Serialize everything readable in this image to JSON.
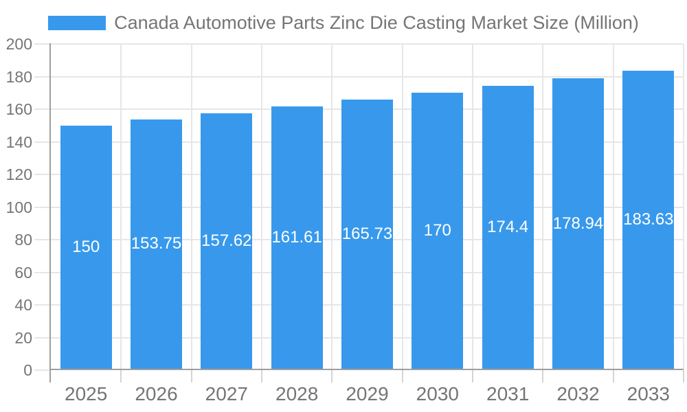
{
  "legend": {
    "swatch_color": "#3899EC",
    "label": "Canada Automotive Parts Zinc Die Casting Market Size (Million)"
  },
  "chart_data": {
    "type": "bar",
    "title": "Canada Automotive Parts Zinc Die Casting Market Size (Million)",
    "categories": [
      "2025",
      "2026",
      "2027",
      "2028",
      "2029",
      "2030",
      "2031",
      "2032",
      "2033"
    ],
    "values": [
      150,
      153.75,
      157.62,
      161.61,
      165.73,
      170,
      174.4,
      178.94,
      183.63
    ],
    "value_labels": [
      "150",
      "153.75",
      "157.62",
      "161.61",
      "165.73",
      "170",
      "174.4",
      "178.94",
      "183.63"
    ],
    "xlabel": "",
    "ylabel": "",
    "ylim": [
      0,
      200
    ],
    "ytick_step": 20,
    "ytick_labels": [
      "0",
      "20",
      "40",
      "60",
      "80",
      "100",
      "120",
      "140",
      "160",
      "180",
      "200"
    ],
    "grid": true,
    "legend_position": "top",
    "colors": {
      "bar": "#3899EC",
      "bar_label": "#FFFFFF",
      "axis_line": "#9E9E9E",
      "grid_line": "#E6E6E6",
      "tick_mark": "#D4D4D4",
      "tick_text": "#757575",
      "title_text": "#757575",
      "background": "#FFFFFF"
    }
  }
}
